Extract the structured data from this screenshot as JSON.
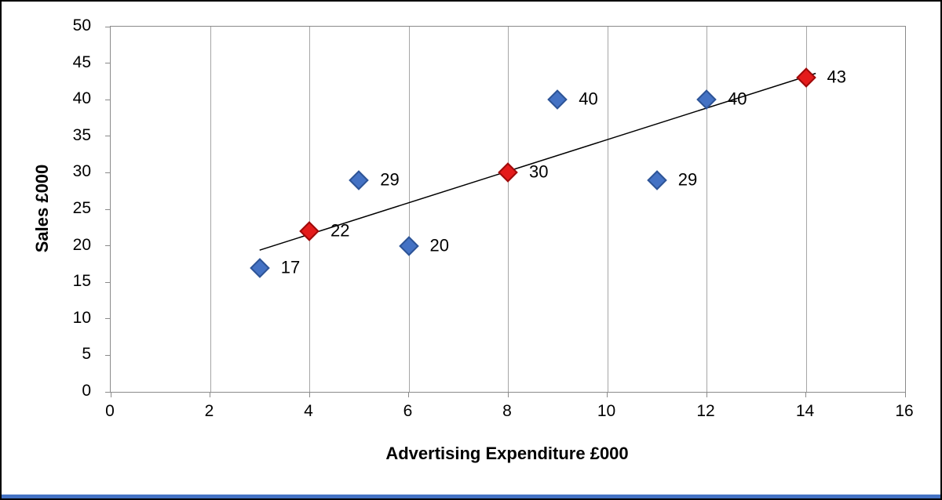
{
  "chart_data": {
    "type": "scatter",
    "title": "",
    "xlabel": "Advertising Expenditure £000",
    "ylabel": "Sales £000",
    "xlim": [
      0,
      16
    ],
    "ylim": [
      0,
      50
    ],
    "x_ticks": [
      0,
      2,
      4,
      6,
      8,
      10,
      12,
      14,
      16
    ],
    "y_ticks": [
      0,
      5,
      10,
      15,
      20,
      25,
      30,
      35,
      40,
      45,
      50
    ],
    "grid": "vertical-only",
    "legend": "none",
    "points": [
      {
        "x": 3,
        "y": 17,
        "label": "17",
        "series": "blue"
      },
      {
        "x": 4,
        "y": 22,
        "label": "22",
        "series": "red"
      },
      {
        "x": 5,
        "y": 29,
        "label": "29",
        "series": "blue"
      },
      {
        "x": 6,
        "y": 20,
        "label": "20",
        "series": "blue"
      },
      {
        "x": 8,
        "y": 30,
        "label": "30",
        "series": "red"
      },
      {
        "x": 9,
        "y": 40,
        "label": "40",
        "series": "blue"
      },
      {
        "x": 11,
        "y": 29,
        "label": "29",
        "series": "blue"
      },
      {
        "x": 12,
        "y": 40,
        "label": "40",
        "series": "blue"
      },
      {
        "x": 14,
        "y": 43,
        "label": "43",
        "series": "red"
      }
    ],
    "trendline": {
      "x1": 3.0,
      "y1": 19.4,
      "x2": 14.2,
      "y2": 43.6
    },
    "colors": {
      "blue_fill": "#4472C4",
      "blue_border": "#2F5597",
      "red_fill": "#E41B1B",
      "red_border": "#9E0B0B",
      "trendline": "#000000",
      "gridline": "#A6A6A6",
      "axis": "#8a8a8a",
      "tick": "#8a8a8a",
      "bottom_bar": "#4472C4"
    }
  }
}
